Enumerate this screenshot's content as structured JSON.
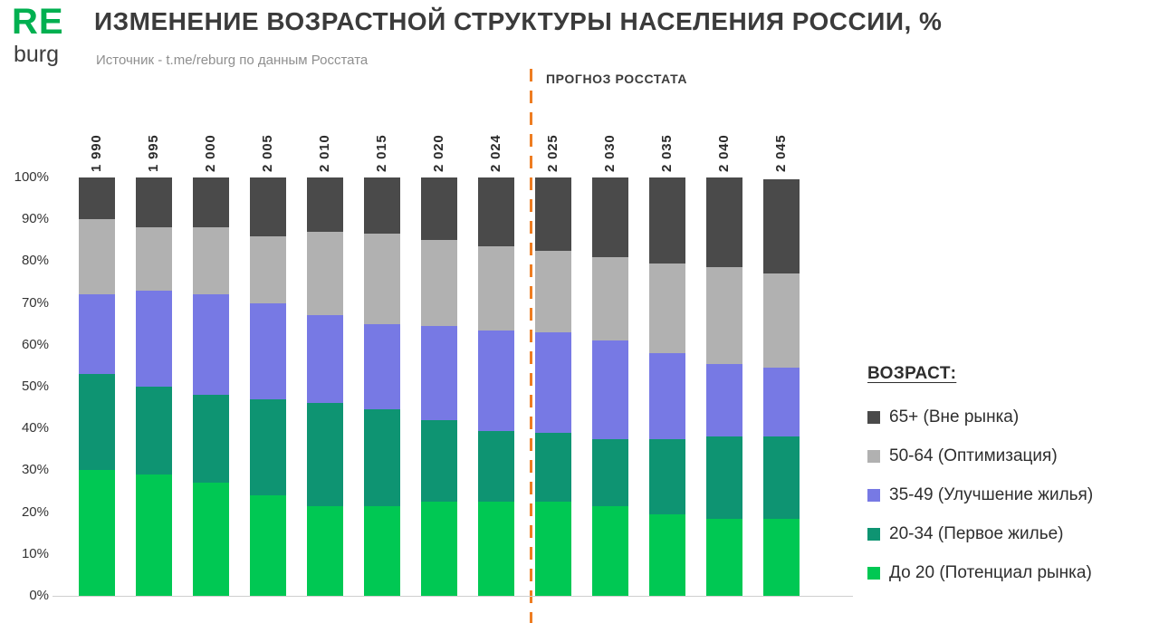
{
  "logo": {
    "line1": "RE",
    "line2": "burg",
    "color": "#00b050"
  },
  "header": {
    "title": "ИЗМЕНЕНИЕ ВОЗРАСТНОЙ СТРУКТУРЫ НАСЕЛЕНИЯ РОССИИ, %",
    "source": "Источник - t.me/reburg по данным Росстата"
  },
  "forecast": {
    "label": "ПРОГНОЗ РОССТАТА",
    "line_color": "#ee7d22",
    "after_category_index": 7
  },
  "legend": {
    "title": "ВОЗРАСТ:"
  },
  "chart_data": {
    "type": "bar",
    "stacked": true,
    "title": "ИЗМЕНЕНИЕ ВОЗРАСТНОЙ СТРУКТУРЫ НАСЕЛЕНИЯ РОССИИ, %",
    "xlabel": "",
    "ylabel": "",
    "ylim": [
      0,
      100
    ],
    "grid": false,
    "legend_position": "right",
    "y_ticks": [
      "0%",
      "10%",
      "20%",
      "30%",
      "40%",
      "50%",
      "60%",
      "70%",
      "80%",
      "90%",
      "100%"
    ],
    "categories": [
      "1 990",
      "1 995",
      "2 000",
      "2 005",
      "2 010",
      "2 015",
      "2 020",
      "2 024",
      "2 025",
      "2 030",
      "2 035",
      "2 040",
      "2 045"
    ],
    "series": [
      {
        "name": "До 20 (Потенциал рынка)",
        "color": "#00c853",
        "values": [
          30,
          29,
          27,
          24,
          21.5,
          21.5,
          22.5,
          22.5,
          22.5,
          21.5,
          19.5,
          18.5,
          18.5
        ]
      },
      {
        "name": "20-34 (Первое жилье)",
        "color": "#0e9472",
        "values": [
          23,
          21,
          21,
          23,
          24.5,
          23,
          19.5,
          17,
          16.5,
          16,
          18,
          19.5,
          19.5
        ]
      },
      {
        "name": "35-49 (Улучшение жилья)",
        "color": "#7779e4",
        "values": [
          19,
          23,
          24,
          23,
          21,
          20.5,
          22.5,
          24,
          24,
          23.5,
          20.5,
          17.5,
          16.5
        ]
      },
      {
        "name": "50-64 (Оптимизация)",
        "color": "#b1b1b1",
        "values": [
          18,
          15,
          16,
          16,
          20,
          21.5,
          20.5,
          20,
          19.5,
          20,
          21.5,
          23,
          22.5
        ]
      },
      {
        "name": "65+ (Вне рынка)",
        "color": "#4a4a4a",
        "values": [
          10,
          12,
          12,
          14,
          13,
          13.5,
          15,
          16.5,
          17.5,
          19,
          20.5,
          21.5,
          22.5
        ]
      }
    ]
  }
}
